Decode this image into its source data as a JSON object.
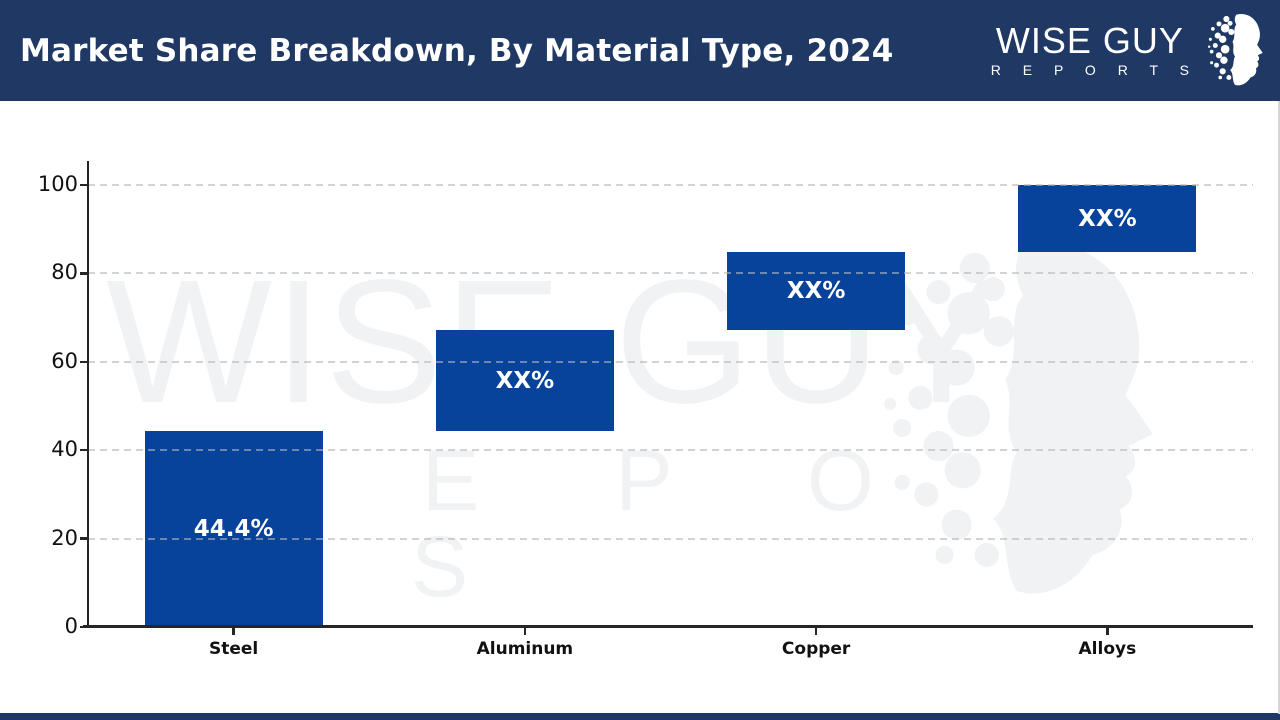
{
  "header": {
    "title": "Market Share Breakdown, By Material Type, 2024",
    "logo": {
      "brand_line1": "WISE GUY",
      "brand_line2": "R E P O R T S"
    }
  },
  "watermark": {
    "line1": "WISE GUY",
    "line2": "R E P O R T S"
  },
  "chart_data": {
    "type": "bar",
    "subtype": "waterfall",
    "title": "Market Share Breakdown, By Material Type, 2024",
    "categories": [
      "Steel",
      "Aluminum",
      "Copper",
      "Alloys"
    ],
    "segments": [
      {
        "category": "Steel",
        "start": 0,
        "end": 44.4,
        "label": "44.4%"
      },
      {
        "category": "Aluminum",
        "start": 44.4,
        "end": 67.1,
        "label": "XX%"
      },
      {
        "category": "Copper",
        "start": 67.1,
        "end": 84.8,
        "label": "XX%"
      },
      {
        "category": "Alloys",
        "start": 84.8,
        "end": 100,
        "label": "XX%"
      }
    ],
    "xlabel": "",
    "ylabel": "",
    "ylim": [
      0,
      105
    ],
    "yticks": [
      0,
      20,
      40,
      60,
      80,
      100
    ],
    "grid": "horizontal dashed lines drawn above bars",
    "legend": "none",
    "bar_color": "#07429b",
    "bar_label_color": "#ffffff"
  },
  "colors": {
    "header_bg": "#1f3864",
    "bar": "#07429b",
    "axis": "#262626",
    "watermark": "#f0f2f4",
    "tick_text": "#111111"
  }
}
